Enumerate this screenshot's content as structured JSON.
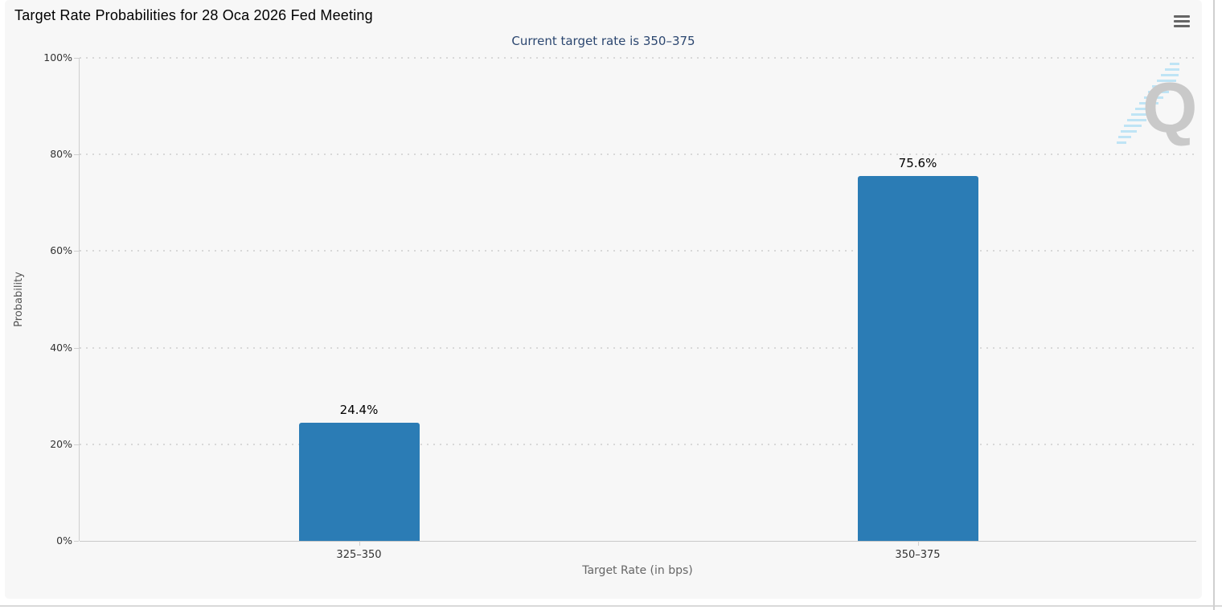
{
  "chart_data": {
    "type": "bar",
    "title": "Target Rate Probabilities for 28 Oca 2026 Fed Meeting",
    "subtitle": "Current target rate is 350–375",
    "categories": [
      "325–350",
      "350–375"
    ],
    "values": [
      24.4,
      75.6
    ],
    "value_labels": [
      "24.4%",
      "75.6%"
    ],
    "xlabel": "Target Rate (in bps)",
    "ylabel": "Probability",
    "ylim": [
      0,
      100
    ],
    "ytick_step": 20,
    "ytick_labels": [
      "0%",
      "20%",
      "40%",
      "60%",
      "80%",
      "100%"
    ],
    "bar_color": "#2b7cb5",
    "grid": "horizontal-dotted",
    "legend": "none",
    "watermark_letter": "Q"
  },
  "colors": {
    "bar": "#2b7cb5",
    "subtitle_text": "#2c4770",
    "panel_background": "#f7f7f7",
    "gridline": "#d8d8d8",
    "axis_line": "#c9c9c9",
    "watermark_gray": "#c9c9c9",
    "watermark_blue": "#bfe4f5"
  }
}
